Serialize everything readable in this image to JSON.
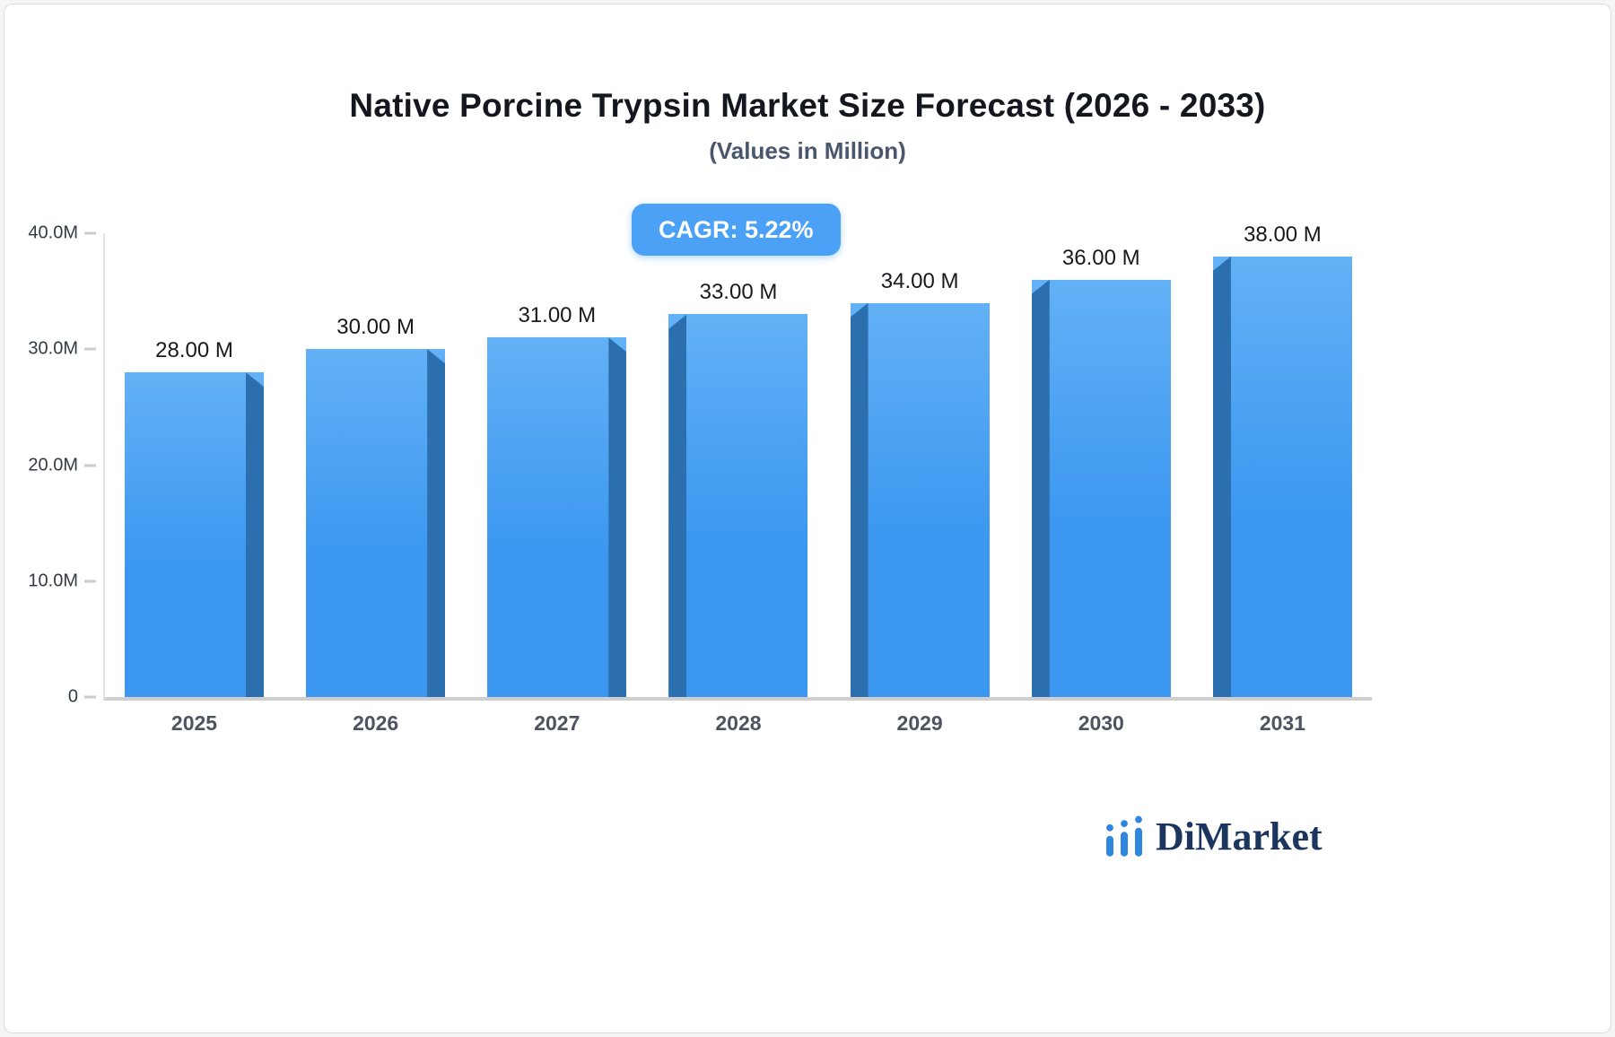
{
  "title": "Native Porcine Trypsin Market Size Forecast (2026 - 2033)",
  "subtitle": "(Values in Million)",
  "cagr_badge": "CAGR: 5.22%",
  "brand": {
    "name": "DiMarket"
  },
  "colors": {
    "bar": "#3b97f0",
    "bar_light": "#63b1f6",
    "bar_dark": "#2c6fae",
    "badge": "#4aa1f5",
    "brand_icon": "#2e86de",
    "brand_text": "#1b355e"
  },
  "chart_data": {
    "type": "bar",
    "categories": [
      "2025",
      "2026",
      "2027",
      "2028",
      "2029",
      "2030",
      "2031"
    ],
    "values": [
      28,
      30,
      31,
      33,
      34,
      36,
      38
    ],
    "bar_labels": [
      "28.00 M",
      "30.00 M",
      "31.00 M",
      "33.00 M",
      "34.00 M",
      "36.00 M",
      "38.00 M"
    ],
    "title": "Native Porcine Trypsin Market Size Forecast (2026 - 2033)",
    "subtitle": "(Values in Million)",
    "xlabel": "",
    "ylabel": "",
    "ylim": [
      0,
      40
    ],
    "yticks": [
      {
        "value": 0,
        "label": "0"
      },
      {
        "value": 10,
        "label": "10.0M"
      },
      {
        "value": 20,
        "label": "20.0M"
      },
      {
        "value": 30,
        "label": "30.0M"
      },
      {
        "value": 40,
        "label": "40.0M"
      }
    ],
    "grid": false,
    "legend": false,
    "annotation": "CAGR: 5.22%"
  }
}
